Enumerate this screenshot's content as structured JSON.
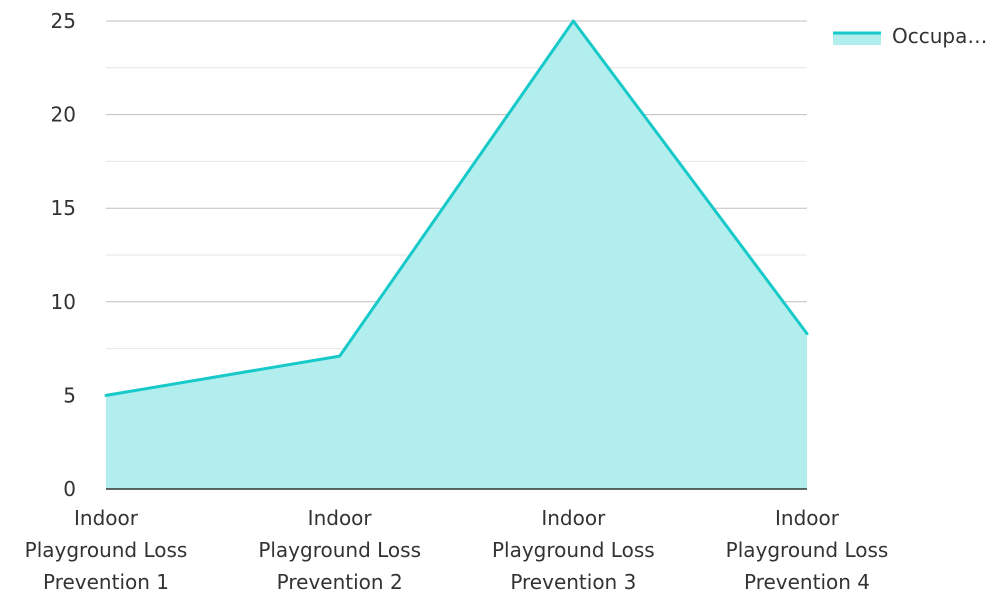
{
  "chart_data": {
    "type": "area",
    "title": "",
    "xlabel": "",
    "ylabel": "",
    "ylim": [
      0,
      25
    ],
    "y_ticks": [
      0,
      5,
      10,
      15,
      20,
      25
    ],
    "grid": "horizontal, minor lines at 2.5",
    "legend_position": "top-right",
    "categories": [
      [
        "Indoor",
        "Playground Loss",
        "Prevention 1"
      ],
      [
        "Indoor",
        "Playground Loss",
        "Prevention 2"
      ],
      [
        "Indoor",
        "Playground Loss",
        "Prevention 3"
      ],
      [
        "Indoor",
        "Playground Loss",
        "Prevention 4"
      ]
    ],
    "series": [
      {
        "name": "Occupa…",
        "values": [
          5,
          7.1,
          25,
          8.3
        ],
        "line_color": "#17c9c9",
        "fill_color": "#b3eeee"
      }
    ]
  },
  "colors": {
    "grid_major": "#bfbfbf",
    "grid_minor": "#e6e6e6",
    "baseline": "#333333",
    "text": "#333333"
  }
}
